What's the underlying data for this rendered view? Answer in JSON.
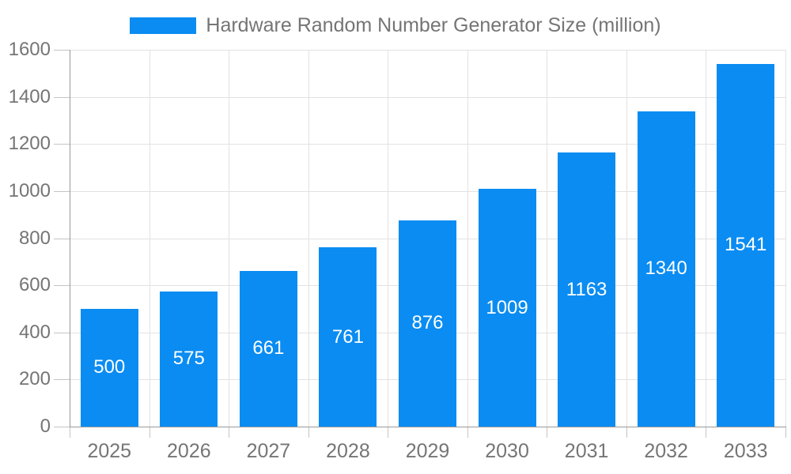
{
  "legend": {
    "label": "Hardware Random Number Generator Size (million)"
  },
  "chart_data": {
    "type": "bar",
    "title": "Hardware Random Number Generator Size (million)",
    "categories": [
      "2025",
      "2026",
      "2027",
      "2028",
      "2029",
      "2030",
      "2031",
      "2032",
      "2033"
    ],
    "values": [
      500,
      575,
      661,
      761,
      876,
      1009,
      1163,
      1340,
      1541
    ],
    "xlabel": "",
    "ylabel": "",
    "ylim": [
      0,
      1600
    ],
    "yticks": [
      0,
      200,
      400,
      600,
      800,
      1000,
      1200,
      1400,
      1600
    ],
    "grid": true,
    "legend_position": "top",
    "bar_color": "#0a8cf2",
    "bar_label_color": "#ffffff",
    "axis_text_color": "#757575",
    "gridline_color": "#e2e2e2",
    "axis_line_color": "#999999",
    "tick_color": "#c4c4c4"
  }
}
